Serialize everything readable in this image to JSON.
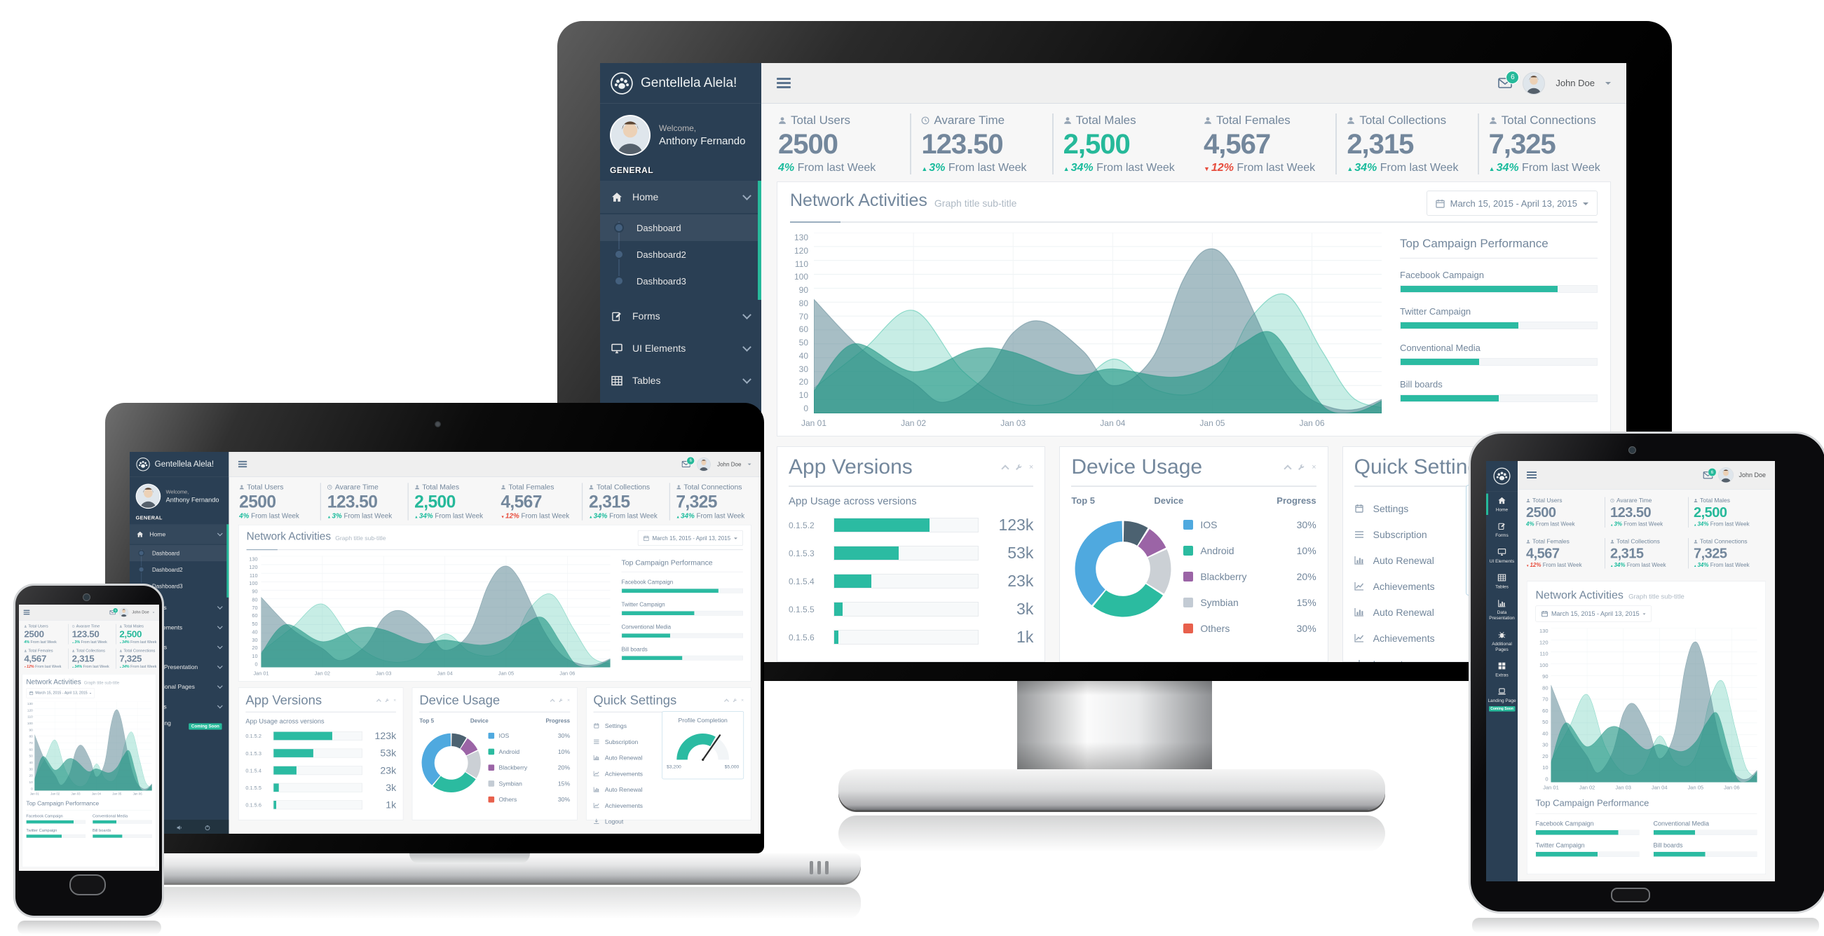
{
  "dash": {
    "logo_text": "Gentellela Alela!",
    "topnav": {
      "user_name": "John Doe",
      "mail_badge": "6"
    },
    "profile": {
      "welcome": "Welcome,",
      "name": "Anthony Fernando",
      "section_label": "GENERAL"
    },
    "menu": {
      "items": [
        {
          "label": "Home"
        },
        {
          "label": "Forms"
        },
        {
          "label": "UI Elements"
        },
        {
          "label": "Tables"
        },
        {
          "label": "Data Presentation"
        },
        {
          "label": "Additional Pages"
        },
        {
          "label": "Extras"
        },
        {
          "label": "Landing Page",
          "badge": "Coming Soon"
        }
      ],
      "home_children": [
        {
          "label": "Dashboard"
        },
        {
          "label": "Dashboard2"
        },
        {
          "label": "Dashboard3"
        }
      ]
    },
    "stats": [
      {
        "label": "Total Users",
        "value": "2500",
        "is_user": true,
        "arrow": "",
        "delta": "4%",
        "note": "From last Week",
        "delta_style": "color:#1ABB9C"
      },
      {
        "label": "Avarare Time",
        "value": "123.50",
        "is_clock": true,
        "arrow": "▲",
        "delta": "3%",
        "note": "From last Week",
        "delta_style": "color:#1ABB9C"
      },
      {
        "label": "Total Males",
        "value": "2,500",
        "is_user": true,
        "arrow": "▲",
        "delta": "34%",
        "note": "From last Week",
        "delta_style": "color:#1ABB9C",
        "num_style": "color:#26B99A"
      },
      {
        "label": "Total Females",
        "value": "4,567",
        "is_user": true,
        "arrow": "▼",
        "delta": "12%",
        "note": "From last Week",
        "delta_style": "color:#E74C3C"
      },
      {
        "label": "Total Collections",
        "value": "2,315",
        "is_user": true,
        "arrow": "▲",
        "delta": "34%",
        "note": "From last Week",
        "delta_style": "color:#1ABB9C"
      },
      {
        "label": "Total Connections",
        "value": "7,325",
        "is_user": true,
        "arrow": "▲",
        "delta": "34%",
        "note": "From last Week",
        "delta_style": "color:#1ABB9C"
      }
    ],
    "network": {
      "title": "Network Activities",
      "subtitle": "Graph title sub-title",
      "date_range": "March 15, 2015 - April 13, 2015"
    },
    "campaigns": {
      "title": "Top Campaign Performance",
      "items": [
        {
          "label": "Facebook Campaign",
          "bar_style": "width:80%"
        },
        {
          "label": "Twitter Campaign",
          "bar_style": "width:60%"
        },
        {
          "label": "Conventional Media",
          "bar_style": "width:40%"
        },
        {
          "label": "Bill boards",
          "bar_style": "width:50%"
        }
      ]
    },
    "app_versions": {
      "title": "App Versions",
      "subtitle": "App Usage across versions",
      "rows": [
        {
          "version": "0.1.5.2",
          "value": "123k",
          "bar_style": "width:66%"
        },
        {
          "version": "0.1.5.3",
          "value": "53k",
          "bar_style": "width:45%"
        },
        {
          "version": "0.1.5.4",
          "value": "23k",
          "bar_style": "width:26%"
        },
        {
          "version": "0.1.5.5",
          "value": "3k",
          "bar_style": "width:6%"
        },
        {
          "version": "0.1.5.6",
          "value": "1k",
          "bar_style": "width:3%"
        }
      ]
    },
    "device_usage": {
      "title": "Device Usage",
      "col_top": "Top 5",
      "col_device": "Device",
      "col_progress": "Progress",
      "rows": [
        {
          "name": "IOS",
          "pct": "30%",
          "swatch_style": "background:#4FA9DF"
        },
        {
          "name": "Android",
          "pct": "10%",
          "swatch_style": "background:#2BBBA0"
        },
        {
          "name": "Blackberry",
          "pct": "20%",
          "swatch_style": "background:#9B64A6"
        },
        {
          "name": "Symbian",
          "pct": "15%",
          "swatch_style": "background:#C3CBD4"
        },
        {
          "name": "Others",
          "pct": "30%",
          "swatch_style": "background:#E8604C"
        }
      ]
    },
    "quick_settings": {
      "title": "Quick Settings",
      "items": [
        "Settings",
        "Subscription",
        "Auto Renewal",
        "Achievements",
        "Auto Renewal",
        "Achievements",
        "Logout"
      ]
    },
    "gauge": {
      "title": "Profile Completion",
      "min_label": "$3,200",
      "max_label": "$5,000",
      "value_pct": 66
    }
  },
  "chart_data": [
    {
      "type": "area",
      "title": "Network Activities",
      "subtitle": "Graph title sub-title",
      "xlabel": "",
      "ylabel": "",
      "x_labels": [
        "Jan 01",
        "Jan 02",
        "Jan 03",
        "Jan 04",
        "Jan 05",
        "Jan 06"
      ],
      "x_domain": [
        0,
        5.7
      ],
      "ylim": [
        0,
        130
      ],
      "ytick_step": 10,
      "grid": true,
      "legend_position": "none",
      "series": [
        {
          "name": "mint",
          "color": "#26B99A",
          "opacity": 0.26,
          "x": [
            0,
            0.5,
            1,
            1.5,
            2,
            2.5,
            3,
            3.4,
            3.8,
            4.1,
            4.4,
            4.75,
            5.1,
            5.4,
            5.7
          ],
          "y": [
            18,
            46,
            74,
            30,
            8,
            10,
            39,
            18,
            14,
            30,
            70,
            85,
            45,
            12,
            4
          ]
        },
        {
          "name": "slate",
          "color": "#4F7D8C",
          "opacity": 0.5,
          "x": [
            0,
            0.5,
            1,
            1.3,
            1.7,
            2,
            2.3,
            2.7,
            3,
            3.4,
            3.7,
            3.95,
            4.2,
            4.6,
            4.9,
            5.2,
            5.45,
            5.7
          ],
          "y": [
            82,
            45,
            22,
            8,
            25,
            58,
            66,
            45,
            20,
            40,
            95,
            118,
            105,
            45,
            15,
            4,
            3,
            10
          ]
        },
        {
          "name": "teal",
          "color": "#1E9482",
          "opacity": 0.62,
          "x": [
            0,
            0.4,
            1,
            1.6,
            2,
            2.6,
            3,
            3.6,
            4,
            4.3,
            4.6,
            4.9,
            5.15,
            5.45,
            5.7
          ],
          "y": [
            16,
            50,
            30,
            46,
            44,
            28,
            32,
            26,
            34,
            50,
            58,
            28,
            3,
            1,
            9
          ]
        }
      ]
    },
    {
      "type": "pie",
      "title": "Device Usage",
      "legend": [
        {
          "name": "IOS",
          "value": 30
        },
        {
          "name": "Android",
          "value": 10
        },
        {
          "name": "Blackberry",
          "value": 20
        },
        {
          "name": "Symbian",
          "value": 15
        },
        {
          "name": "Others",
          "value": 30
        }
      ],
      "segments": [
        {
          "color": "#4C6271",
          "value": 9
        },
        {
          "color": "#9B64A6",
          "value": 9
        },
        {
          "color": "#CBD0D5",
          "value": 16
        },
        {
          "color": "#2BBBA0",
          "value": 27
        },
        {
          "color": "#4FA9DF",
          "value": 39
        }
      ]
    },
    {
      "type": "gauge",
      "title": "Profile Completion",
      "min": "$3,200",
      "max": "$5,000",
      "value_pct": 66
    }
  ]
}
